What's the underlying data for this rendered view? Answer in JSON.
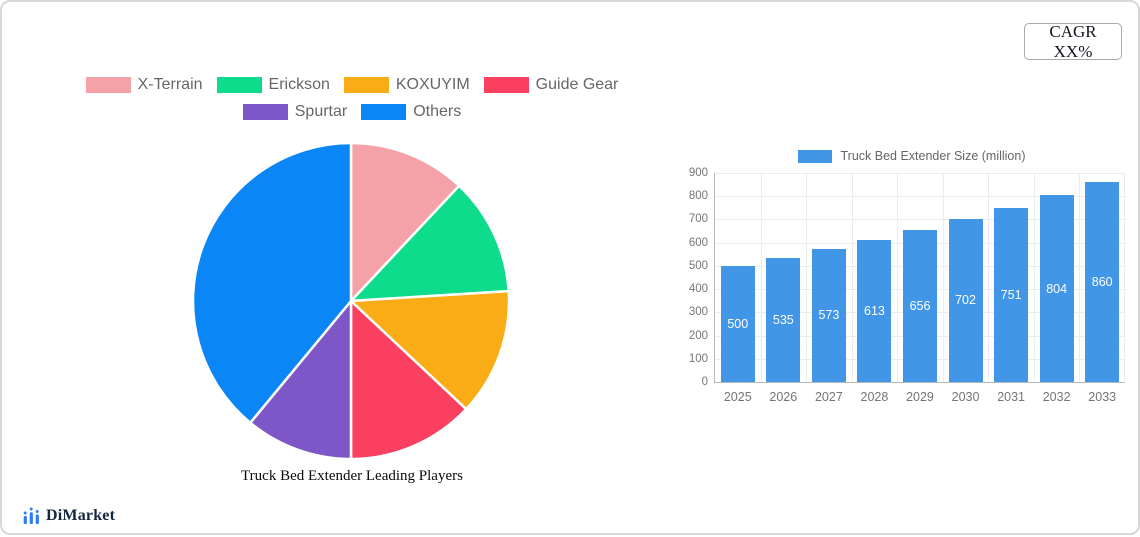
{
  "header": {
    "cagr_label": "CAGR XX%"
  },
  "footer": {
    "brand": "DiMarket"
  },
  "chart_data": [
    {
      "type": "pie",
      "title": "Truck Bed Extender Leading Players",
      "labels": [
        "X-Terrain",
        "Erickson",
        "KOXUYIM",
        "Guide Gear",
        "Spurtar",
        "Others"
      ],
      "values": [
        12,
        12,
        13,
        13,
        11,
        39
      ],
      "unit": "percent_share_estimated",
      "colors": [
        "#f4a1a8",
        "#0edc8d",
        "#f9ac15",
        "#fa3f60",
        "#7d57c8",
        "#0b86f6"
      ],
      "start_angle_deg": 0,
      "direction": "clockwise",
      "legend_position": "top",
      "legend_rows": [
        4,
        2
      ]
    },
    {
      "type": "bar",
      "legend_label": "Truck Bed Extender Size (million)",
      "categories": [
        "2025",
        "2026",
        "2027",
        "2028",
        "2029",
        "2030",
        "2031",
        "2032",
        "2033"
      ],
      "values": [
        500,
        535,
        573,
        613,
        656,
        702,
        751,
        804,
        860
      ],
      "bar_color": "#4296e8",
      "value_label_color": "#ffffff",
      "ylim": [
        0,
        900
      ],
      "ytick_step": 100,
      "grid": true,
      "legend_position": "top"
    }
  ]
}
